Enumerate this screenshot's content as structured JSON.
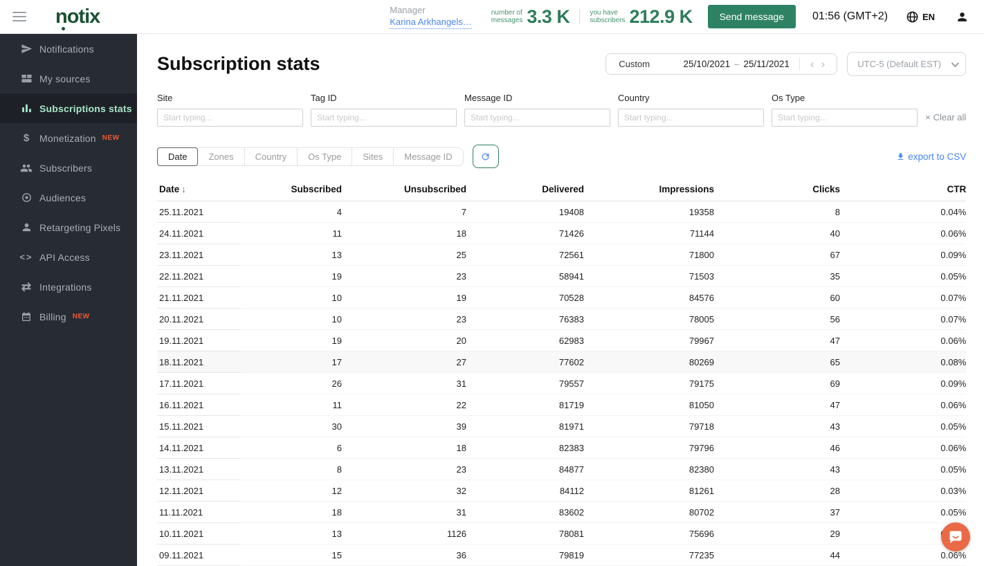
{
  "header": {
    "logo": "notix",
    "manager_label": "Manager",
    "manager_name": "Karina Arkhangels…",
    "messages_stat": {
      "label_line1": "number of",
      "label_line2": "messages",
      "value": "3.3 K"
    },
    "subscribers_stat": {
      "label_line1": "you have",
      "label_line2": "subscribers",
      "value": "212.9 K"
    },
    "send_button": "Send message",
    "time": "01:56 (GMT+2)",
    "language": "EN"
  },
  "sidebar": {
    "items": [
      {
        "label": "Notifications",
        "icon": "send-icon",
        "active": false,
        "badge": ""
      },
      {
        "label": "My sources",
        "icon": "sources-grid-icon",
        "active": false,
        "badge": ""
      },
      {
        "label": "Subscriptions stats",
        "icon": "bar-chart-icon",
        "active": true,
        "badge": ""
      },
      {
        "label": "Monetization",
        "icon": "dollar-icon",
        "active": false,
        "badge": "NEW"
      },
      {
        "label": "Subscribers",
        "icon": "people-icon",
        "active": false,
        "badge": ""
      },
      {
        "label": "Audiences",
        "icon": "target-icon",
        "active": false,
        "badge": ""
      },
      {
        "label": "Retargeting Pixels",
        "icon": "person-icon",
        "active": false,
        "badge": ""
      },
      {
        "label": "API Access",
        "icon": "code-icon",
        "active": false,
        "badge": ""
      },
      {
        "label": "Integrations",
        "icon": "swap-arrows-icon",
        "active": false,
        "badge": ""
      },
      {
        "label": "Billing",
        "icon": "calendar-icon",
        "active": false,
        "badge": "NEW"
      }
    ]
  },
  "page": {
    "title": "Subscription stats",
    "date_range": {
      "mode": "Custom",
      "from": "25/10/2021",
      "separator": "–",
      "to": "25/11/2021",
      "prev": "‹",
      "next": "›"
    },
    "timezone": "UTC-5 (Default EST)"
  },
  "filters": {
    "placeholder": "Start typing...",
    "fields": [
      "Site",
      "Tag ID",
      "Message ID",
      "Country",
      "Os Type"
    ],
    "clear_icon": "×",
    "clear_all": "Clear all"
  },
  "tabs": {
    "items": [
      "Date",
      "Zones",
      "Country",
      "Os Type",
      "Sites",
      "Message ID"
    ],
    "active": "Date"
  },
  "export_label": "export to CSV",
  "table": {
    "columns": [
      "Date",
      "Subscribed",
      "Unsubscribed",
      "Delivered",
      "Impressions",
      "Clicks",
      "CTR"
    ],
    "sort_column": "Date",
    "sort_icon": "↓",
    "rows": [
      {
        "cells": [
          "25.11.2021",
          "4",
          "7",
          "19408",
          "19358",
          "8",
          "0.04%"
        ],
        "highlighted": false
      },
      {
        "cells": [
          "24.11.2021",
          "11",
          "18",
          "71426",
          "71144",
          "40",
          "0.06%"
        ],
        "highlighted": false
      },
      {
        "cells": [
          "23.11.2021",
          "13",
          "25",
          "72561",
          "71800",
          "67",
          "0.09%"
        ],
        "highlighted": false
      },
      {
        "cells": [
          "22.11.2021",
          "19",
          "23",
          "58941",
          "71503",
          "35",
          "0.05%"
        ],
        "highlighted": false
      },
      {
        "cells": [
          "21.11.2021",
          "10",
          "19",
          "70528",
          "84576",
          "60",
          "0.07%"
        ],
        "highlighted": false
      },
      {
        "cells": [
          "20.11.2021",
          "10",
          "23",
          "76383",
          "78005",
          "56",
          "0.07%"
        ],
        "highlighted": false
      },
      {
        "cells": [
          "19.11.2021",
          "19",
          "20",
          "62983",
          "79967",
          "47",
          "0.06%"
        ],
        "highlighted": false
      },
      {
        "cells": [
          "18.11.2021",
          "17",
          "27",
          "77602",
          "80269",
          "65",
          "0.08%"
        ],
        "highlighted": true
      },
      {
        "cells": [
          "17.11.2021",
          "26",
          "31",
          "79557",
          "79175",
          "69",
          "0.09%"
        ],
        "highlighted": false
      },
      {
        "cells": [
          "16.11.2021",
          "11",
          "22",
          "81719",
          "81050",
          "47",
          "0.06%"
        ],
        "highlighted": false
      },
      {
        "cells": [
          "15.11.2021",
          "30",
          "39",
          "81971",
          "79718",
          "43",
          "0.05%"
        ],
        "highlighted": false
      },
      {
        "cells": [
          "14.11.2021",
          "6",
          "18",
          "82383",
          "79796",
          "46",
          "0.06%"
        ],
        "highlighted": false
      },
      {
        "cells": [
          "13.11.2021",
          "8",
          "23",
          "84877",
          "82380",
          "43",
          "0.05%"
        ],
        "highlighted": false
      },
      {
        "cells": [
          "12.11.2021",
          "12",
          "32",
          "84112",
          "81261",
          "28",
          "0.03%"
        ],
        "highlighted": false
      },
      {
        "cells": [
          "11.11.2021",
          "18",
          "31",
          "83602",
          "80702",
          "37",
          "0.05%"
        ],
        "highlighted": false
      },
      {
        "cells": [
          "10.11.2021",
          "13",
          "1126",
          "78081",
          "75696",
          "29",
          "0.04%"
        ],
        "highlighted": false
      },
      {
        "cells": [
          "09.11.2021",
          "15",
          "36",
          "79819",
          "77235",
          "44",
          "0.06%"
        ],
        "highlighted": false
      }
    ]
  },
  "colors": {
    "brand_dark_green": "#1b5233",
    "stat_green": "#2e7d5c",
    "send_button_green": "#2e8264",
    "sidebar_bg": "#272c34",
    "sidebar_active_bg": "#1d2127",
    "sidebar_active_text": "#a8e6c8",
    "badge_orange": "#ed5b34",
    "link_blue": "#4a86f7",
    "action_blue": "#4285f4",
    "chat_orange": "#ea6a47"
  }
}
